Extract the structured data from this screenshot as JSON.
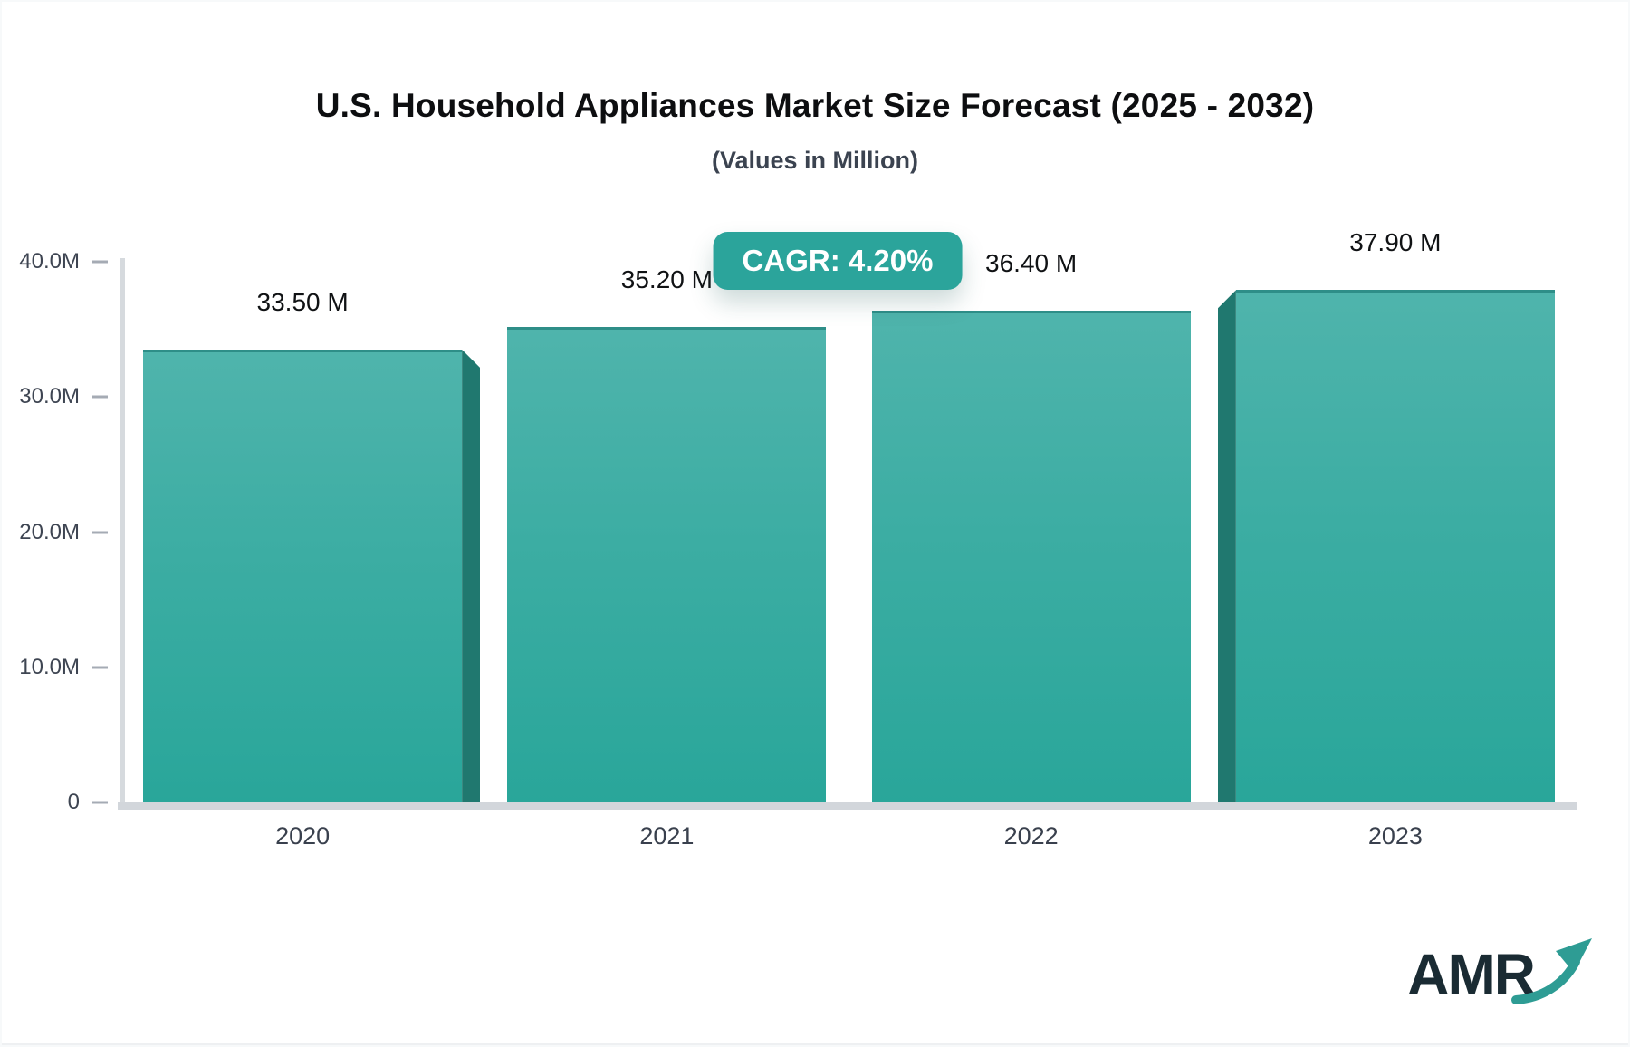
{
  "chart": {
    "title": "U.S. Household Appliances Market Size Forecast (2025 - 2032)",
    "subtitle": "(Values in Million)",
    "cagr_badge": "CAGR: 4.20%"
  },
  "chart_data": {
    "type": "bar",
    "title": "U.S. Household Appliances Market Size Forecast (2025 - 2032)",
    "subtitle": "(Values in Million)",
    "categories": [
      "2020",
      "2021",
      "2022",
      "2023"
    ],
    "values": [
      33.5,
      35.2,
      36.4,
      37.9
    ],
    "bar_labels": [
      "33.50 M",
      "35.20 M",
      "36.40 M",
      "37.90 M"
    ],
    "cagr_annotation": "CAGR: 4.20%",
    "xlabel": "",
    "ylabel": "",
    "ylim": [
      0,
      40
    ],
    "yticks": [
      {
        "value": 0,
        "label": "0"
      },
      {
        "value": 10,
        "label": "10.0M"
      },
      {
        "value": 20,
        "label": "20.0M"
      },
      {
        "value": 30,
        "label": "30.0M"
      },
      {
        "value": 40,
        "label": "40.0M"
      }
    ],
    "grid": false,
    "legend": false
  },
  "logo": {
    "text": "AMR",
    "arrow_icon": "trend-up-arrow"
  },
  "colors": {
    "bar_gradient_top": "#4fb4ac",
    "bar_gradient_bottom": "#29a69a",
    "bar_top_edge": "#2e8e88",
    "bar_side_3d": "#20786f",
    "badge_bg": "#2ba49b",
    "badge_text": "#ffffff",
    "axis_line": "#d4d8dd",
    "tick_mark": "#a5abb4",
    "title_text": "#0d0e10",
    "subtitle_text": "#3b4350",
    "axis_label_text": "#3e4552",
    "value_label_text": "#101214",
    "logo_text": "#1a2b33",
    "logo_arrow": "#2e9c94"
  }
}
